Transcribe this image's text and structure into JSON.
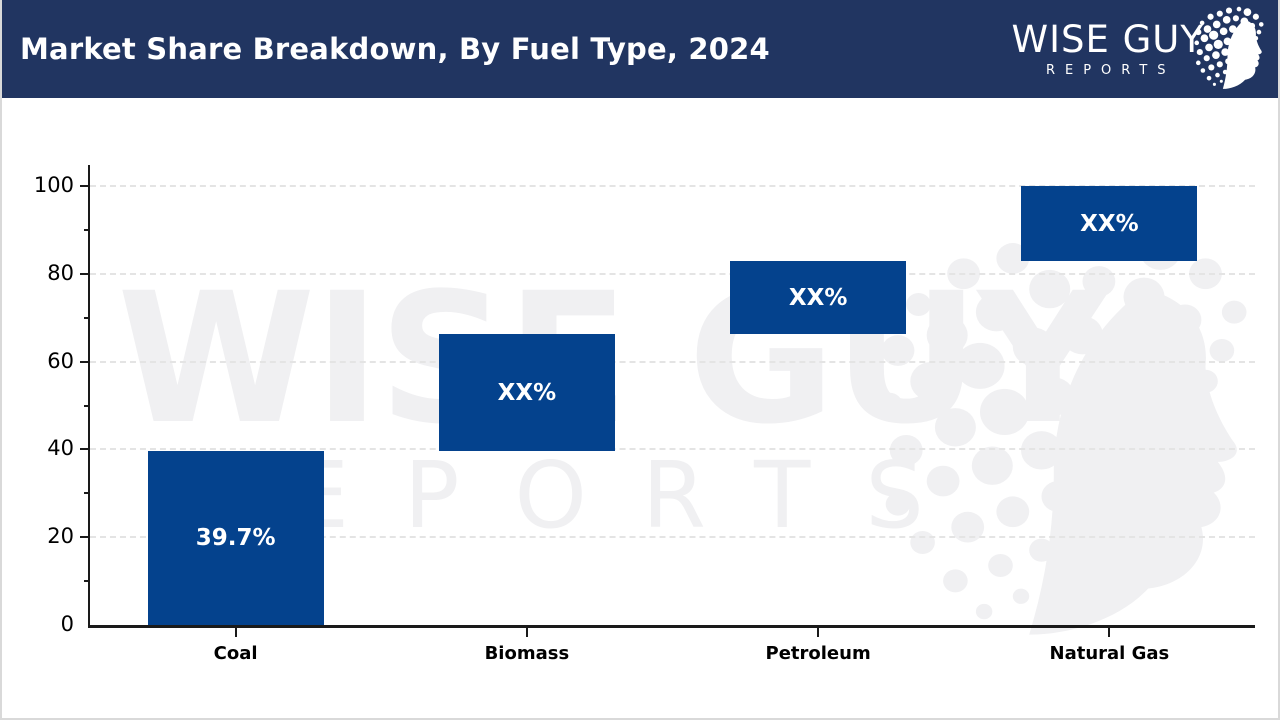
{
  "header": {
    "title": "Market Share Breakdown, By Fuel Type, 2024",
    "bg_color": "#213561",
    "logo": {
      "line1": "WISE GUY",
      "line2": "REPORTS"
    }
  },
  "watermark": {
    "line1": "WISE GUY",
    "line2": "REPORTS"
  },
  "chart_data": {
    "type": "bar",
    "subtype": "waterfall",
    "title": "Market Share Breakdown, By Fuel Type, 2024",
    "categories": [
      "Coal",
      "Biomass",
      "Petroleum",
      "Natural Gas"
    ],
    "segments": [
      {
        "category": "Coal",
        "start": 0,
        "end": 39.7,
        "label": "39.7%"
      },
      {
        "category": "Biomass",
        "start": 39.7,
        "end": 66.2,
        "label": "XX%"
      },
      {
        "category": "Petroleum",
        "start": 66.2,
        "end": 82.9,
        "label": "XX%"
      },
      {
        "category": "Natural Gas",
        "start": 82.9,
        "end": 100,
        "label": "XX%"
      }
    ],
    "xlabel": "",
    "ylabel": "",
    "ylim": [
      0,
      100
    ],
    "yticks": [
      0,
      20,
      40,
      60,
      80,
      100
    ],
    "minor_tick_step": 10,
    "grid": "horizontal-dashed",
    "grid_color": "#e4e4e4",
    "bar_color": "#04428d",
    "label_color": "#ffffff",
    "legend": "none"
  }
}
